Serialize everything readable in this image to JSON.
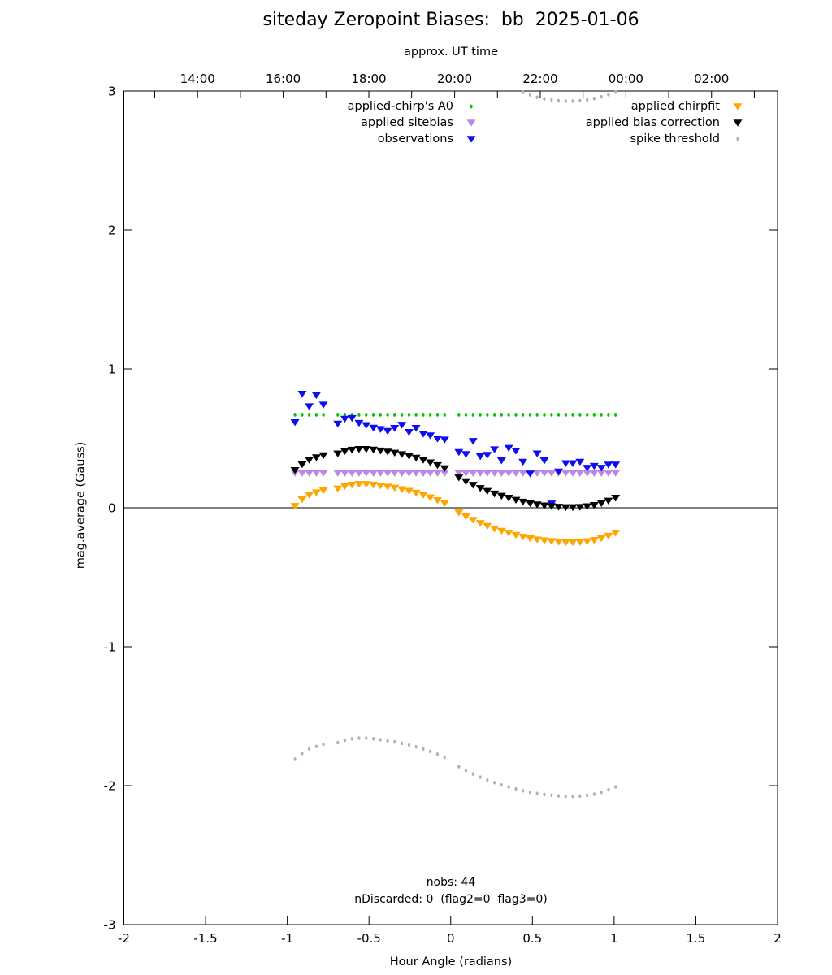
{
  "title": "siteday Zeropoint Biases:  bb  2025-01-06",
  "annotations": {
    "nobs": "nobs: 44",
    "ndiscarded": "nDiscarded: 0  (flag2=0  flag3=0)"
  },
  "legend": {
    "left": [
      {
        "label": "applied-chirp's A0",
        "series": "a0"
      },
      {
        "label": "applied sitebias",
        "series": "sitebias"
      },
      {
        "label": "observations",
        "series": "observations"
      }
    ],
    "right": [
      {
        "label": "applied chirpfit",
        "series": "chirpfit"
      },
      {
        "label": "applied bias correction",
        "series": "bias_correction"
      },
      {
        "label": "spike threshold",
        "series": "spike_threshold_lower"
      }
    ]
  },
  "colors": {
    "a0": "#00c400",
    "chirpfit": "#ffa500",
    "sitebias": "#bb88e8",
    "bias_correction": "#000000",
    "observations": "#0d0df0",
    "spike_threshold": "#b0b0b0",
    "axis": "#000000"
  },
  "chart_data": {
    "type": "scatter",
    "title": "siteday Zeropoint Biases:  bb  2025-01-06",
    "xlabel": "Hour Angle (radians)",
    "x2label": "approx. UT time",
    "ylabel": "mag.average (Gauss)",
    "xlim": [
      -2,
      2
    ],
    "ylim": [
      -3,
      3
    ],
    "grid": false,
    "legend_position": "top-inside",
    "x_ticks": [
      {
        "v": -2,
        "label": "-2"
      },
      {
        "v": -1.5,
        "label": "-1.5"
      },
      {
        "v": -1,
        "label": "-1"
      },
      {
        "v": -0.5,
        "label": "-0.5"
      },
      {
        "v": 0,
        "label": "0"
      },
      {
        "v": 0.5,
        "label": "0.5"
      },
      {
        "v": 1,
        "label": "1"
      },
      {
        "v": 1.5,
        "label": "1.5"
      },
      {
        "v": 2,
        "label": "2"
      }
    ],
    "y_ticks": [
      {
        "v": -3,
        "label": "-3"
      },
      {
        "v": -2,
        "label": "-2"
      },
      {
        "v": -1,
        "label": "-1"
      },
      {
        "v": 0,
        "label": "0"
      },
      {
        "v": 1,
        "label": "1"
      },
      {
        "v": 2,
        "label": "2"
      },
      {
        "v": 3,
        "label": "3"
      }
    ],
    "x2_ticks": [
      {
        "v": -1.811,
        "label": ""
      },
      {
        "v": -1.549,
        "label": "14:00"
      },
      {
        "v": -1.287,
        "label": ""
      },
      {
        "v": -1.025,
        "label": "16:00"
      },
      {
        "v": -0.763,
        "label": ""
      },
      {
        "v": -0.501,
        "label": "18:00"
      },
      {
        "v": -0.239,
        "label": ""
      },
      {
        "v": 0.024,
        "label": "20:00"
      },
      {
        "v": 0.286,
        "label": ""
      },
      {
        "v": 0.548,
        "label": "22:00"
      },
      {
        "v": 0.81,
        "label": ""
      },
      {
        "v": 1.072,
        "label": "00:00"
      },
      {
        "v": 1.334,
        "label": ""
      },
      {
        "v": 1.596,
        "label": "02:00"
      },
      {
        "v": 1.858,
        "label": ""
      }
    ],
    "x": [
      -0.953,
      -0.909,
      -0.866,
      -0.822,
      -0.779,
      -0.691,
      -0.648,
      -0.604,
      -0.561,
      -0.517,
      -0.473,
      -0.43,
      -0.386,
      -0.343,
      -0.299,
      -0.255,
      -0.212,
      -0.168,
      -0.125,
      -0.081,
      -0.037,
      0.05,
      0.093,
      0.137,
      0.181,
      0.224,
      0.268,
      0.311,
      0.355,
      0.399,
      0.442,
      0.486,
      0.529,
      0.573,
      0.617,
      0.66,
      0.704,
      0.747,
      0.791,
      0.835,
      0.878,
      0.922,
      0.965,
      1.009
    ],
    "series": [
      {
        "id": "spike_threshold_lower",
        "name": "spike threshold",
        "marker": "dot-small",
        "color": "#b0b0b0",
        "y": [
          -1.81,
          -1.768,
          -1.736,
          -1.718,
          -1.703,
          -1.69,
          -1.673,
          -1.663,
          -1.658,
          -1.658,
          -1.662,
          -1.669,
          -1.677,
          -1.685,
          -1.695,
          -1.707,
          -1.721,
          -1.736,
          -1.754,
          -1.774,
          -1.796,
          -1.863,
          -1.89,
          -1.916,
          -1.939,
          -1.96,
          -1.979,
          -1.995,
          -2.009,
          -2.024,
          -2.037,
          -2.048,
          -2.057,
          -2.064,
          -2.069,
          -2.074,
          -2.077,
          -2.077,
          -2.075,
          -2.07,
          -2.061,
          -2.048,
          -2.03,
          -2.009
        ]
      },
      {
        "id": "spike_threshold_upper",
        "name": "spike threshold",
        "marker": "dot-small",
        "color": "#b0b0b0",
        "x": [
          0.442,
          0.486,
          0.529,
          0.573,
          0.617,
          0.66,
          0.704,
          0.747,
          0.791,
          0.835,
          0.878,
          0.922,
          0.965,
          1.009
        ],
        "y": [
          2.99,
          2.972,
          2.955,
          2.944,
          2.936,
          2.93,
          2.927,
          2.927,
          2.93,
          2.937,
          2.946,
          2.958,
          2.974,
          2.993
        ]
      },
      {
        "id": "a0",
        "name": "applied-chirp's A0",
        "marker": "dot",
        "color": "#00c400",
        "const": 0.67
      },
      {
        "id": "sitebias",
        "name": "applied sitebias",
        "marker": "triangle-down",
        "color": "#bb88e8",
        "const": 0.25
      },
      {
        "id": "chirpfit",
        "name": "applied chirpfit",
        "marker": "triangle-down",
        "color": "#ffa500",
        "y": [
          0.012,
          0.06,
          0.092,
          0.11,
          0.125,
          0.138,
          0.155,
          0.165,
          0.17,
          0.17,
          0.166,
          0.159,
          0.151,
          0.143,
          0.133,
          0.121,
          0.107,
          0.092,
          0.074,
          0.054,
          0.032,
          -0.035,
          -0.062,
          -0.088,
          -0.111,
          -0.132,
          -0.151,
          -0.167,
          -0.181,
          -0.196,
          -0.209,
          -0.22,
          -0.229,
          -0.236,
          -0.241,
          -0.246,
          -0.249,
          -0.249,
          -0.247,
          -0.242,
          -0.233,
          -0.22,
          -0.202,
          -0.181
        ]
      },
      {
        "id": "observations",
        "name": "observations",
        "marker": "triangle-down",
        "color": "#0d0df0",
        "y": [
          0.615,
          0.82,
          0.73,
          0.81,
          0.742,
          0.605,
          0.64,
          0.645,
          0.61,
          0.595,
          0.576,
          0.566,
          0.552,
          0.574,
          0.597,
          0.545,
          0.574,
          0.532,
          0.52,
          0.497,
          0.49,
          0.4,
          0.386,
          0.48,
          0.37,
          0.38,
          0.42,
          0.34,
          0.43,
          0.41,
          0.33,
          0.245,
          0.39,
          0.34,
          0.03,
          0.26,
          0.32,
          0.32,
          0.33,
          0.287,
          0.3,
          0.287,
          0.31,
          0.31
        ]
      },
      {
        "id": "bias_correction",
        "name": "applied bias correction",
        "marker": "triangle-down",
        "color": "#000000",
        "y": [
          0.27,
          0.312,
          0.344,
          0.362,
          0.377,
          0.39,
          0.407,
          0.417,
          0.422,
          0.422,
          0.418,
          0.411,
          0.403,
          0.395,
          0.385,
          0.373,
          0.359,
          0.344,
          0.326,
          0.306,
          0.284,
          0.217,
          0.19,
          0.164,
          0.141,
          0.12,
          0.101,
          0.085,
          0.071,
          0.056,
          0.043,
          0.032,
          0.023,
          0.016,
          0.011,
          0.006,
          0.003,
          0.003,
          0.005,
          0.01,
          0.019,
          0.032,
          0.05,
          0.071
        ]
      }
    ]
  }
}
